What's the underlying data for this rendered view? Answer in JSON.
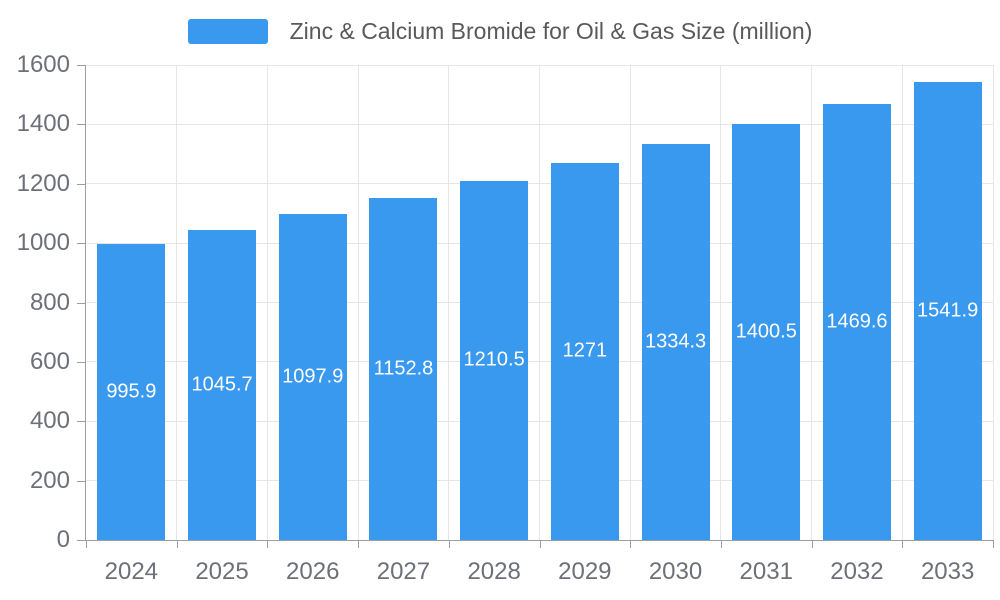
{
  "legend": {
    "label": "Zinc & Calcium Bromide for Oil & Gas Size (million)"
  },
  "chart_data": {
    "type": "bar",
    "title": "Zinc & Calcium Bromide for Oil & Gas Size (million)",
    "categories": [
      "2024",
      "2025",
      "2026",
      "2027",
      "2028",
      "2029",
      "2030",
      "2031",
      "2032",
      "2033"
    ],
    "series": [
      {
        "name": "Zinc & Calcium Bromide for Oil & Gas Size (million)",
        "values": [
          995.9,
          1045.7,
          1097.9,
          1152.8,
          1210.5,
          1271,
          1334.3,
          1400.5,
          1469.6,
          1541.9
        ]
      }
    ],
    "xlabel": "",
    "ylabel": "",
    "ylim": [
      0,
      1600
    ],
    "ytick_step": 200,
    "grid": true,
    "legend_position": "top",
    "value_label_position": "inside-center",
    "colors": {
      "bar": "#3999EE",
      "value_label": "#FFFFFF",
      "grid_line": "#E4E6EC",
      "axis_line": "#9A9EA5",
      "axis_text": "#6E7079",
      "legend_text": "#58595C",
      "background": "#FFFFFF"
    }
  }
}
